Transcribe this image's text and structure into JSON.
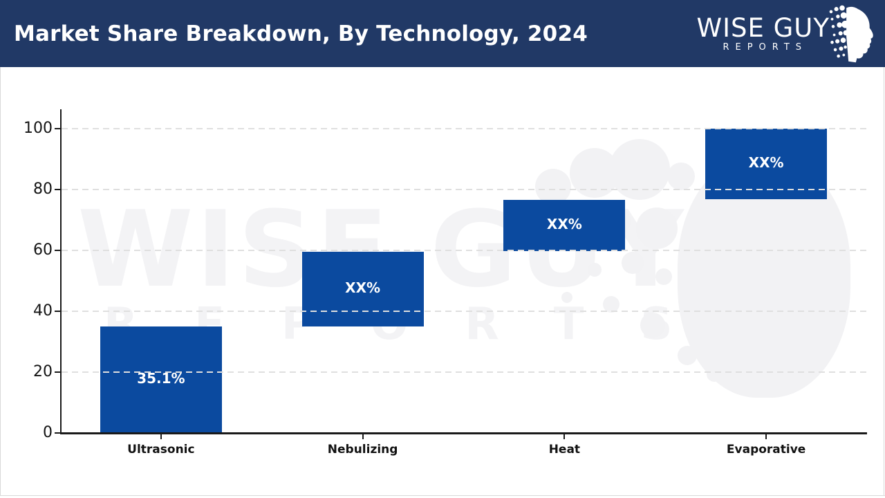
{
  "header": {
    "title": "Market Share Breakdown, By Technology, 2024",
    "bg_color": "#213966",
    "logo": {
      "name": "WISE GUY",
      "sub": "REPORTS"
    }
  },
  "watermark": {
    "line1": "WISE GUY",
    "line2": "REPORTS"
  },
  "chart_data": {
    "type": "bar",
    "subtype": "waterfall-stepped-floating-bars",
    "title": "Market Share Breakdown, By Technology, 2024",
    "categories": [
      "Ultrasonic",
      "Nebulizing",
      "Heat",
      "Evaporative"
    ],
    "segments": [
      {
        "category": "Ultrasonic",
        "start": 0,
        "end": 35.1,
        "label": "35.1%"
      },
      {
        "category": "Nebulizing",
        "start": 35.1,
        "end": 59.6,
        "label": "XX%"
      },
      {
        "category": "Heat",
        "start": 59.8,
        "end": 76.6,
        "label": "XX%"
      },
      {
        "category": "Evaporative",
        "start": 76.8,
        "end": 100,
        "label": "XX%"
      }
    ],
    "xlabel": "",
    "ylabel": "",
    "yticks": [
      0,
      20,
      40,
      60,
      80,
      100
    ],
    "ylim": [
      0,
      105
    ],
    "grid": "horizontal-dashed",
    "grid_color": "#dfdfdf",
    "legend": "none",
    "bar_color": "#0b4a9f",
    "value_label_color": "#ffffff",
    "axis_color": "#1a1a1a"
  }
}
